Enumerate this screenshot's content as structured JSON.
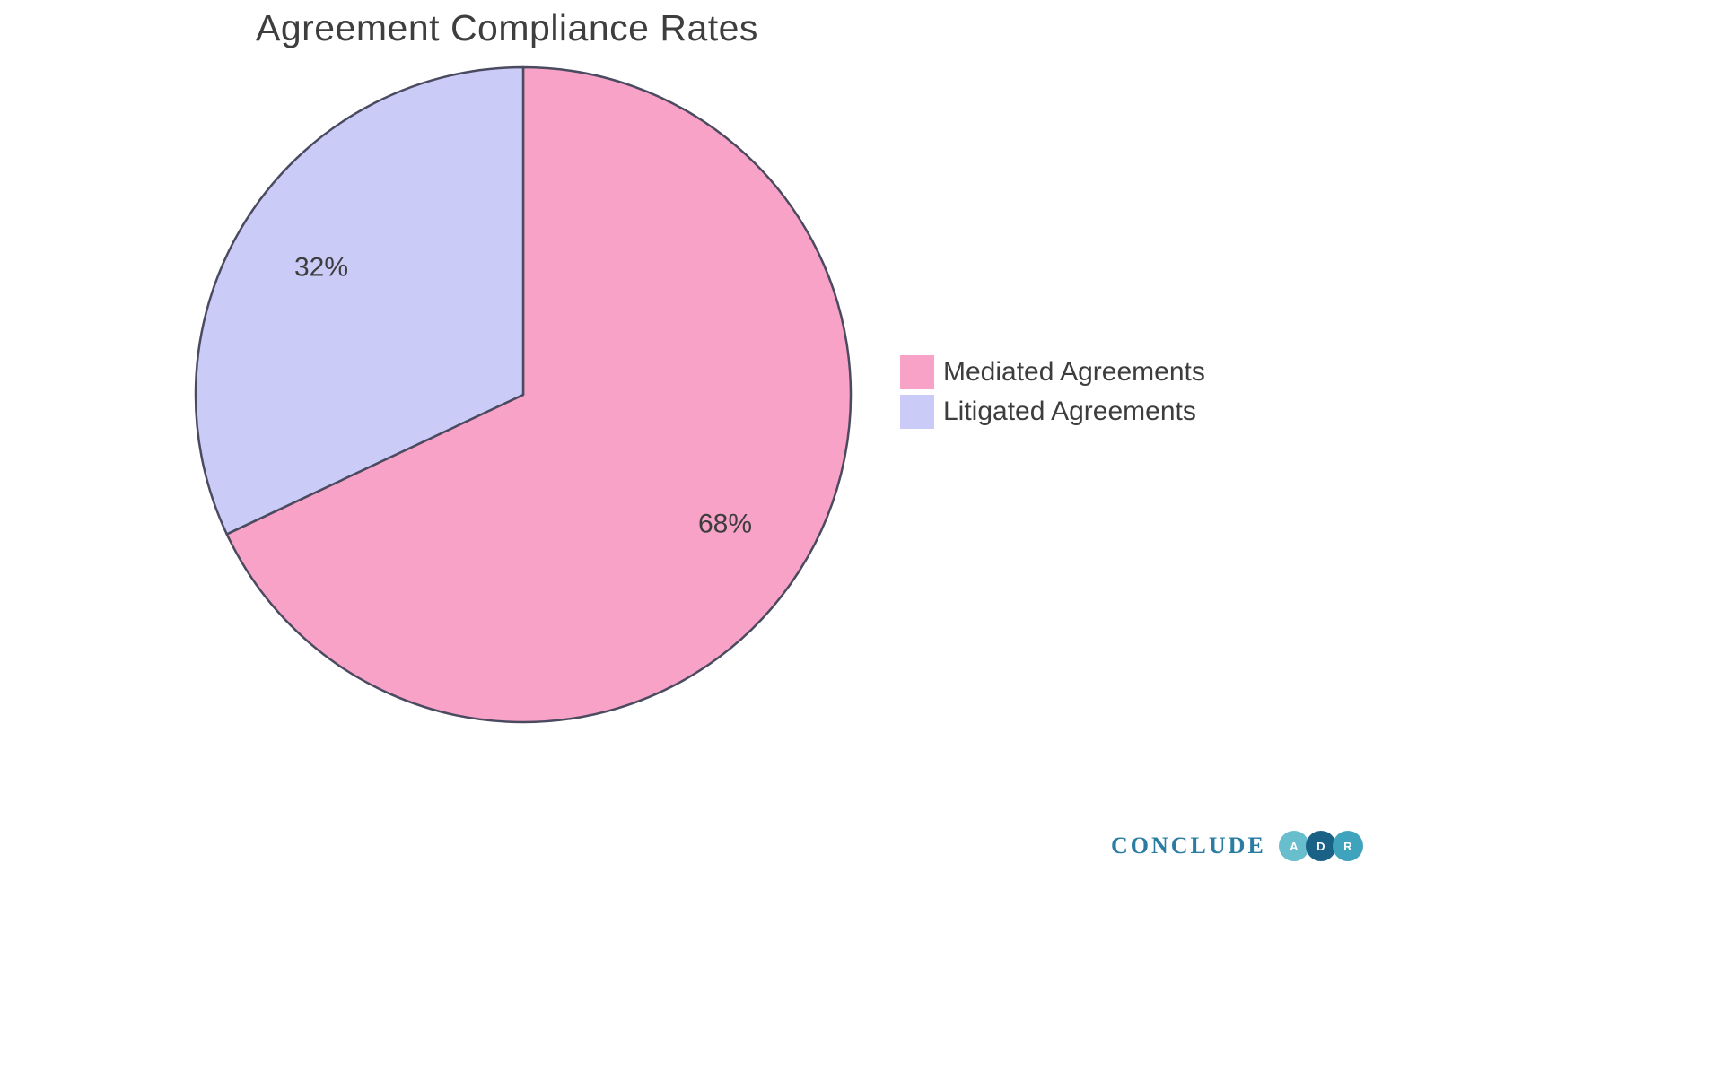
{
  "chart_data": {
    "type": "pie",
    "title": "Agreement Compliance Rates",
    "labels": [
      "Mediated Agreements",
      "Litigated Agreements"
    ],
    "values": [
      68,
      32
    ],
    "slice_labels": [
      "68%",
      "32%"
    ],
    "colors": [
      "#F9A2C7",
      "#CBCBF8"
    ],
    "stroke_color": "#4A4A60",
    "label_color": "#3d3d3d",
    "legend_position": "right",
    "start_angle_deg": 0,
    "direction": "clockwise"
  },
  "branding": {
    "wordmark": "CONCLUDE",
    "wordmark_color": "#2B7CA3",
    "badges": [
      {
        "letter": "A",
        "color": "#68BECD"
      },
      {
        "letter": "D",
        "color": "#1A6186"
      },
      {
        "letter": "R",
        "color": "#3FA3BD"
      }
    ]
  }
}
